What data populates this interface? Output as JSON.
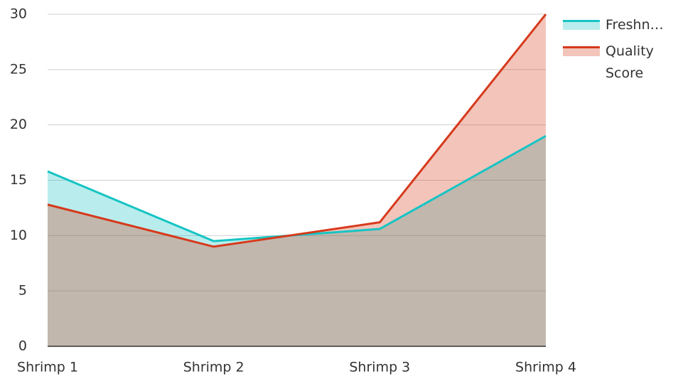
{
  "chart_data": {
    "type": "area",
    "categories": [
      "Shrimp 1",
      "Shrimp 2",
      "Shrimp 3",
      "Shrimp 4"
    ],
    "series": [
      {
        "name": "Freshn…",
        "color": "#17c4c4",
        "values": [
          15.8,
          9.5,
          10.6,
          19.0
        ]
      },
      {
        "name": "Quality Score",
        "color": "#d63a1c",
        "values": [
          12.8,
          9.0,
          11.2,
          30
        ]
      }
    ],
    "ylim": [
      0,
      30
    ],
    "yticks": [
      0,
      5,
      10,
      15,
      20,
      25,
      30
    ],
    "grid": true,
    "legend": "right"
  }
}
